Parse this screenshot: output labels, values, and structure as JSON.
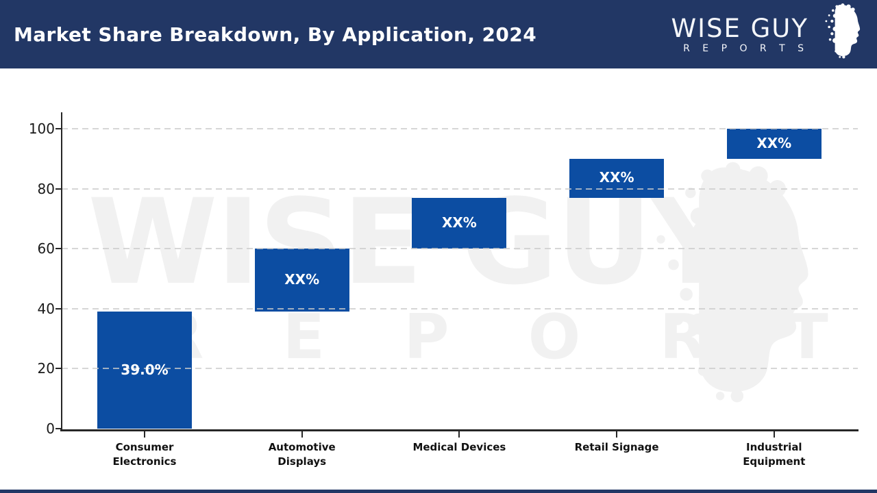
{
  "header": {
    "title": "Market Share Breakdown, By Application, 2024",
    "bg_color": "#223765",
    "logo": {
      "line1": "WISE GUY",
      "line2": "R E P O R T S"
    }
  },
  "watermark": {
    "line1": "WISE GUY",
    "line2": "R E P O R T S"
  },
  "chart_data": {
    "type": "bar",
    "subtype": "waterfall",
    "title": "Market Share Breakdown, By Application, 2024",
    "categories": [
      "Consumer Electronics",
      "Automotive Displays",
      "Medical Devices",
      "Retail Signage",
      "Industrial Equipment"
    ],
    "segments": [
      {
        "category": "Consumer Electronics",
        "start": 0,
        "end": 39,
        "value": 39,
        "label": "39.0%"
      },
      {
        "category": "Automotive Displays",
        "start": 39,
        "end": 60,
        "value": 21,
        "label": "XX%"
      },
      {
        "category": "Medical Devices",
        "start": 60,
        "end": 77,
        "value": 17,
        "label": "XX%"
      },
      {
        "category": "Retail Signage",
        "start": 77,
        "end": 90,
        "value": 13,
        "label": "XX%"
      },
      {
        "category": "Industrial Equipment",
        "start": 90,
        "end": 100,
        "value": 10,
        "label": "XX%"
      }
    ],
    "ylim": [
      0,
      100
    ],
    "yticks": [
      0,
      20,
      40,
      60,
      80,
      100
    ],
    "xlabel": "",
    "ylabel": "",
    "grid": "horizontal-dashed",
    "legend": "none",
    "bar_color": "#0c4da2",
    "bar_label_color": "#ffffff"
  },
  "footer": {
    "bg_color": "#223765"
  }
}
